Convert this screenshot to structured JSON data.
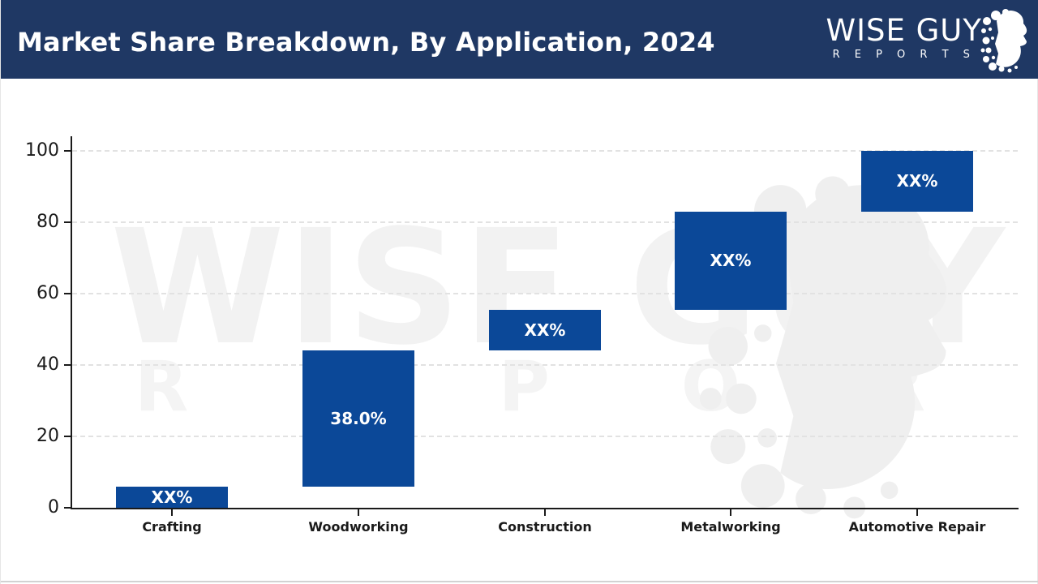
{
  "header": {
    "title": "Market Share Breakdown, By Application, 2024",
    "logo": {
      "line1": "WISE GUY",
      "line2": "R E P O R T S"
    }
  },
  "watermark": {
    "line1": "WISE GUY",
    "line2": "R E P O R T S"
  },
  "colors": {
    "header_bg": "#1f3864",
    "bar": "#0b4898",
    "grid": "#e2e2e2",
    "axis": "#1a1a1a",
    "bar_label": "#ffffff",
    "watermark_text": "#f2f2f2"
  },
  "chart_data": {
    "type": "bar",
    "subtype": "waterfall",
    "title": "Market Share Breakdown, By Application, 2024",
    "categories": [
      "Crafting",
      "Woodworking",
      "Construction",
      "Metalworking",
      "Automotive Repair"
    ],
    "segments": [
      {
        "category": "Crafting",
        "start": 0,
        "end": 6,
        "label": "XX%"
      },
      {
        "category": "Woodworking",
        "start": 6,
        "end": 44,
        "label": "38.0%"
      },
      {
        "category": "Construction",
        "start": 44,
        "end": 55.5,
        "label": "XX%"
      },
      {
        "category": "Metalworking",
        "start": 55.5,
        "end": 83,
        "label": "XX%"
      },
      {
        "category": "Automotive Repair",
        "start": 83,
        "end": 100,
        "label": "XX%"
      }
    ],
    "yticks": [
      0,
      20,
      40,
      60,
      80,
      100
    ],
    "ylim": [
      0,
      104
    ],
    "xlabel": "",
    "ylabel": "",
    "grid": "horizontal-dashed",
    "legend": "none",
    "bar_color": "#0b4898"
  }
}
